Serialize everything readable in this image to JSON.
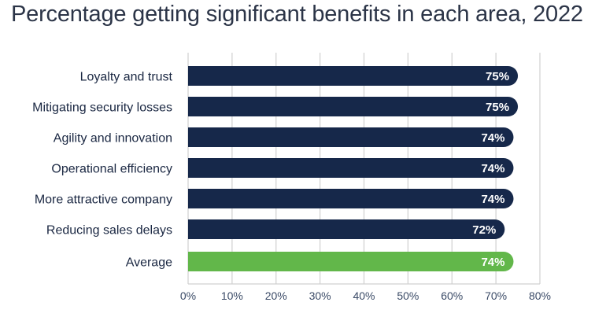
{
  "chart_data": {
    "type": "bar",
    "orientation": "horizontal",
    "title": "Percentage getting significant benefits in each area, 2022",
    "xlabel": "",
    "ylabel": "",
    "categories": [
      "Loyalty and trust",
      "Mitigating security losses",
      "Agility and innovation",
      "Operational efficiency",
      "More attractive company",
      "Reducing sales delays",
      "Average"
    ],
    "values": [
      75,
      75,
      74,
      74,
      74,
      72,
      74
    ],
    "data_labels": [
      "75%",
      "75%",
      "74%",
      "74%",
      "74%",
      "72%",
      "74%"
    ],
    "highlight_index": 6,
    "xlim": [
      0,
      80
    ],
    "xticks": [
      0,
      10,
      20,
      30,
      40,
      50,
      60,
      70,
      80
    ],
    "xtick_labels": [
      "0%",
      "10%",
      "20%",
      "30%",
      "40%",
      "50%",
      "60%",
      "70%",
      "80%"
    ],
    "grid": true,
    "colors": {
      "bar": "#16284a",
      "highlight": "#62b74a",
      "grid": "#d0d0d0",
      "text": "#1a2742"
    }
  }
}
